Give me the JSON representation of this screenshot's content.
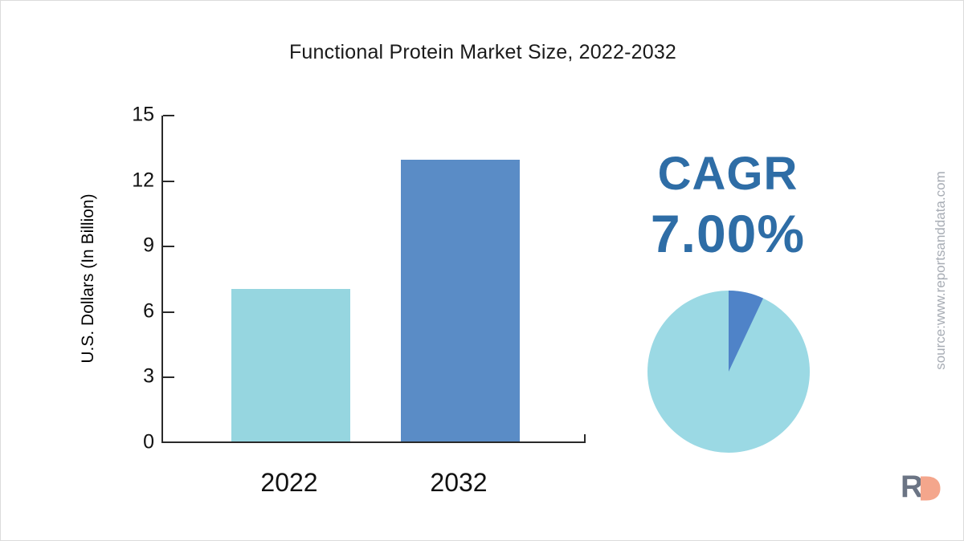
{
  "title": "Functional Protein Market Size, 2022-2032",
  "chart_data": {
    "type": "bar",
    "title": "Functional Protein Market Size, 2022-2032",
    "categories": [
      "2022",
      "2032"
    ],
    "values": [
      7.0,
      12.9
    ],
    "xlabel": "",
    "ylabel": "U.S. Dollars (In Billion)",
    "ylim": [
      0,
      15
    ],
    "yticks": [
      0,
      3,
      6,
      9,
      12,
      15
    ],
    "grid": false,
    "legend": "none",
    "bar_colors": [
      "#96d6e0",
      "#5a8cc6"
    ]
  },
  "y_axis": {
    "label": "U.S. Dollars (In Billion)"
  },
  "cagr": {
    "label": "CAGR",
    "value": "7.00%",
    "text_color": "#2e6da6",
    "pie": {
      "type": "pie",
      "percent": 7,
      "slices": [
        {
          "name": "CAGR share",
          "value": 7,
          "color": "#4f83c8"
        },
        {
          "name": "remainder",
          "value": 93,
          "color": "#9bd9e4"
        }
      ]
    }
  },
  "source": {
    "text": "source:www.reportsanddata.com"
  },
  "logo": {
    "letter": "R",
    "r_color": "#6b7484",
    "d_color": "#f4a68c"
  },
  "colors": {
    "axis": "#2a2a2a",
    "bar_2022": "#96d6e0",
    "bar_2032": "#5a8cc6",
    "cagr_blue": "#2e6da6",
    "pie_light": "#9bd9e4",
    "pie_dark": "#4f83c8"
  }
}
